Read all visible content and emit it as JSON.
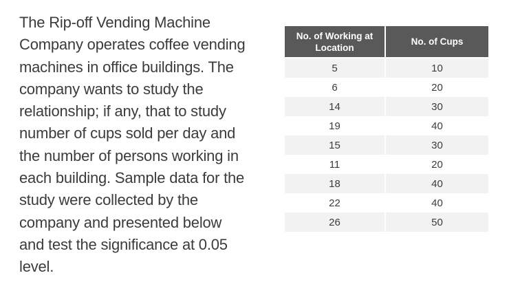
{
  "problem": {
    "lines": [
      "The Rip-off Vending Machine",
      "Company operates coffee vending",
      "machines in office buildings. The",
      "company wants to study the",
      "relationship; if any, that to study",
      "number of cups sold per day and",
      "the number of persons working in",
      "each building. Sample data for the",
      "study were collected by the",
      "company and presented below",
      "and test the significance at 0.05",
      "level."
    ]
  },
  "table": {
    "headers": [
      "No. of Working at Location",
      "No. of Cups"
    ],
    "rows": [
      [
        "5",
        "10"
      ],
      [
        "6",
        "20"
      ],
      [
        "14",
        "30"
      ],
      [
        "19",
        "40"
      ],
      [
        "15",
        "30"
      ],
      [
        "11",
        "20"
      ],
      [
        "18",
        "40"
      ],
      [
        "22",
        "40"
      ],
      [
        "26",
        "50"
      ]
    ]
  },
  "chart_data": {
    "type": "table",
    "title": "",
    "columns": [
      "No. of Working at Location",
      "No. of Cups"
    ],
    "x": [
      5,
      6,
      14,
      19,
      15,
      11,
      18,
      22,
      26
    ],
    "y": [
      10,
      20,
      30,
      40,
      30,
      20,
      40,
      40,
      50
    ]
  },
  "colors": {
    "header_bg": "#595959",
    "header_text": "#ffffff",
    "row_alt_bg": "#f2f2f2",
    "body_text": "#3b3b3b"
  }
}
